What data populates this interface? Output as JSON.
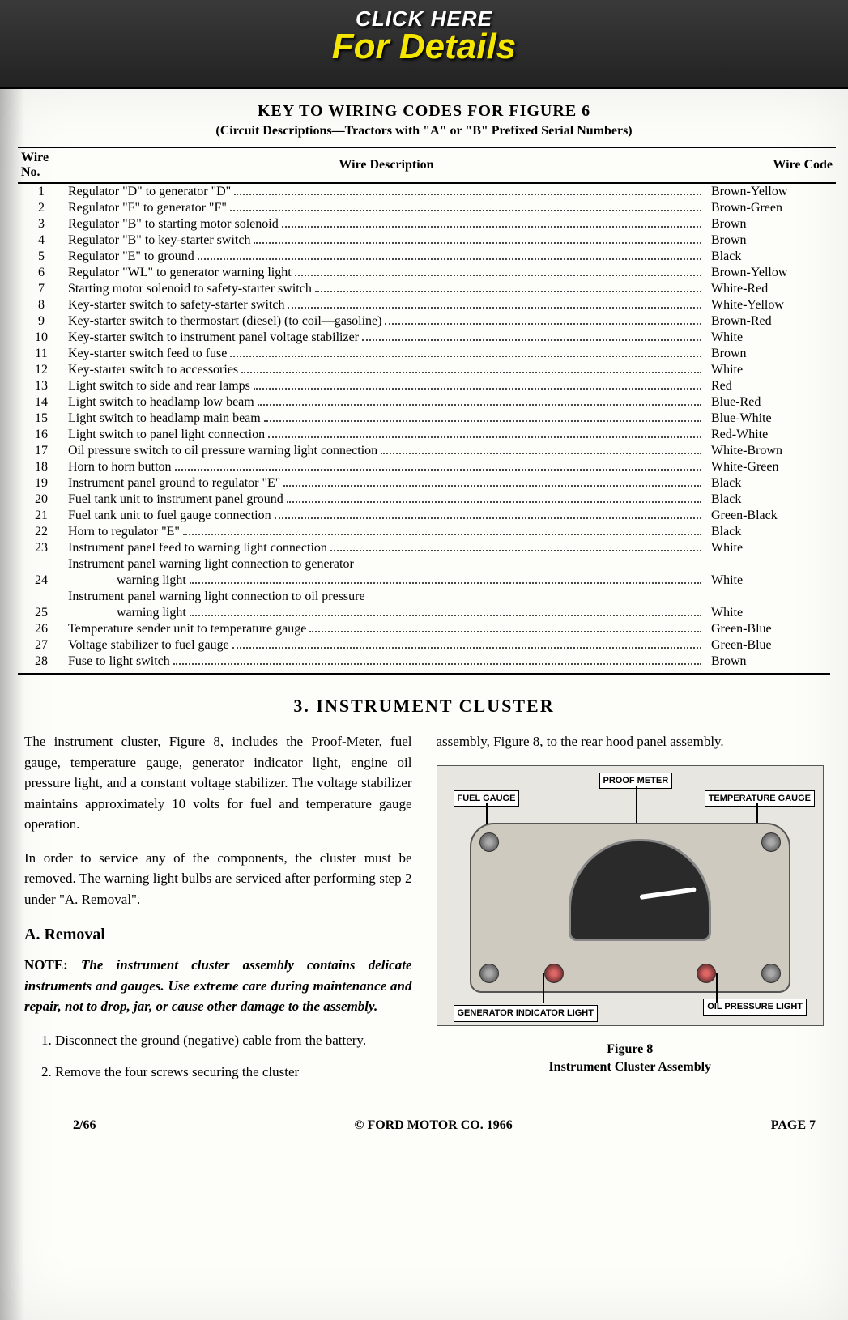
{
  "banner": {
    "line1": "CLICK HERE",
    "line2": "For Details"
  },
  "wiring_key": {
    "title": "KEY TO WIRING CODES FOR FIGURE 6",
    "subtitle": "(Circuit Descriptions—Tractors with \"A\" or \"B\" Prefixed Serial Numbers)",
    "columns": {
      "no": "Wire No.",
      "desc": "Wire Description",
      "code": "Wire Code"
    },
    "rows": [
      {
        "no": "1",
        "desc": "Regulator \"D\" to generator \"D\"",
        "code": "Brown-Yellow"
      },
      {
        "no": "2",
        "desc": "Regulator \"F\" to generator \"F\"",
        "code": "Brown-Green"
      },
      {
        "no": "3",
        "desc": "Regulator \"B\" to starting motor solenoid",
        "code": "Brown"
      },
      {
        "no": "4",
        "desc": "Regulator \"B\" to key-starter switch",
        "code": "Brown"
      },
      {
        "no": "5",
        "desc": "Regulator \"E\" to ground",
        "code": "Black"
      },
      {
        "no": "6",
        "desc": "Regulator \"WL\" to generator warning light",
        "code": "Brown-Yellow"
      },
      {
        "no": "7",
        "desc": "Starting motor solenoid to safety-starter switch",
        "code": "White-Red"
      },
      {
        "no": "8",
        "desc": "Key-starter switch to safety-starter switch",
        "code": "White-Yellow"
      },
      {
        "no": "9",
        "desc": "Key-starter switch to thermostart (diesel)  (to coil—gasoline)",
        "code": "Brown-Red"
      },
      {
        "no": "10",
        "desc": "Key-starter switch to instrument panel voltage stabilizer",
        "code": "White"
      },
      {
        "no": "11",
        "desc": "Key-starter switch feed to fuse",
        "code": "Brown"
      },
      {
        "no": "12",
        "desc": "Key-starter switch to accessories",
        "code": "White"
      },
      {
        "no": "13",
        "desc": "Light switch to side and rear lamps",
        "code": "Red"
      },
      {
        "no": "14",
        "desc": "Light switch to headlamp low beam",
        "code": "Blue-Red"
      },
      {
        "no": "15",
        "desc": "Light switch to headlamp main beam",
        "code": "Blue-White"
      },
      {
        "no": "16",
        "desc": "Light switch to panel light connection",
        "code": "Red-White"
      },
      {
        "no": "17",
        "desc": "Oil pressure switch to oil pressure warning light connection",
        "code": "White-Brown"
      },
      {
        "no": "18",
        "desc": "Horn to horn button",
        "code": "White-Green"
      },
      {
        "no": "19",
        "desc": "Instrument panel ground to regulator \"E\"",
        "code": "Black"
      },
      {
        "no": "20",
        "desc": "Fuel tank unit to instrument panel ground",
        "code": "Black"
      },
      {
        "no": "21",
        "desc": "Fuel tank unit to fuel gauge connection",
        "code": "Green-Black"
      },
      {
        "no": "22",
        "desc": "Horn to regulator \"E\"",
        "code": "Black"
      },
      {
        "no": "23",
        "desc": "Instrument panel feed to warning light connection",
        "code": "White"
      },
      {
        "no": "24",
        "desc": "Instrument panel warning light connection to generator\n            warning light",
        "code": "White"
      },
      {
        "no": "25",
        "desc": "Instrument panel warning light connection to oil pressure\n            warning light",
        "code": "White"
      },
      {
        "no": "26",
        "desc": "Temperature sender unit to temperature gauge",
        "code": "Green-Blue"
      },
      {
        "no": "27",
        "desc": "Voltage stabilizer to fuel gauge",
        "code": "Green-Blue"
      },
      {
        "no": "28",
        "desc": "Fuse to light switch",
        "code": "Brown"
      }
    ]
  },
  "section": {
    "title": "3.  INSTRUMENT  CLUSTER",
    "para1": "The instrument cluster, Figure 8, includes the Proof-Meter, fuel gauge, temperature gauge, generator indicator light, engine oil pressure light, and a constant voltage stabilizer. The voltage stabilizer maintains approximately 10 volts for fuel and temperature gauge operation.",
    "para2": "In order to service any of the components, the cluster must be removed. The warning light bulbs are serviced after performing step 2 under \"A. Removal\".",
    "removal_heading": "A.  Removal",
    "note_label": "NOTE:",
    "note_text": "The instrument cluster assembly contains delicate instruments and gauges. Use extreme care during maintenance and repair, not to drop, jar, or cause other damage to the assembly.",
    "step1": "Disconnect the ground (negative) cable from the battery.",
    "step2": "Remove the four screws securing the cluster",
    "right_intro": "assembly, Figure 8, to the rear hood panel assembly.",
    "figure_labels": {
      "fuel": "FUEL GAUGE",
      "proof": "PROOF METER",
      "temp": "TEMPERATURE GAUGE",
      "gen": "GENERATOR INDICATOR LIGHT",
      "oil": "OIL PRESSURE LIGHT"
    },
    "figure_caption_1": "Figure 8",
    "figure_caption_2": "Instrument Cluster Assembly"
  },
  "footer": {
    "left": "2/66",
    "center": "© FORD MOTOR CO. 1966",
    "right": "PAGE 7"
  }
}
